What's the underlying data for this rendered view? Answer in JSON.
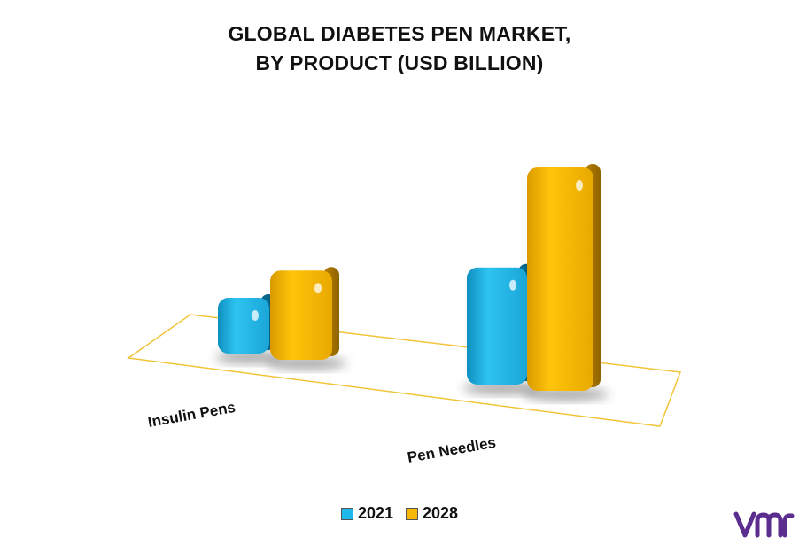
{
  "title_lines": [
    "GLOBAL DIABETES PEN MARKET,",
    "BY PRODUCT (USD BILLION)"
  ],
  "chart_data": {
    "type": "bar",
    "title": "GLOBAL DIABETES PEN MARKET, BY PRODUCT (USD BILLION)",
    "categories": [
      "Insulin Pens",
      "Pen Needles"
    ],
    "series": [
      {
        "name": "2021",
        "values": [
          1.0,
          2.1
        ]
      },
      {
        "name": "2028",
        "values": [
          1.6,
          4.0
        ]
      }
    ],
    "colors": {
      "2021": "#1fb8ea",
      "2028": "#f6b800"
    },
    "outline_color": "#f2c43a",
    "legend_position": "bottom",
    "grid": false,
    "style": "3d"
  },
  "logo": {
    "icon": "vmr-logo-icon",
    "color": "#5b2d8e"
  }
}
